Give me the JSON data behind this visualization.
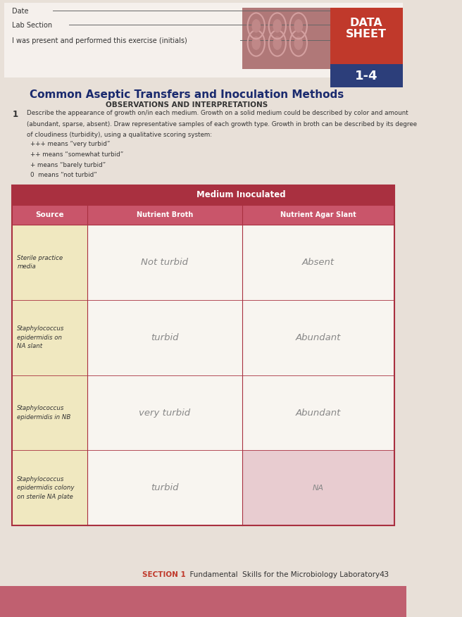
{
  "page_bg": "#e8e0d8",
  "header_bg": "#f5f0ec",
  "data_sheet_bg": "#c0392b",
  "data_sheet_num_bg": "#2c3e7a",
  "title": "Common Aseptic Transfers and Inoculation Methods",
  "subtitle": "OBSERVATIONS AND INTERPRETATIONS",
  "question_text_line1": "Describe the appearance of growth on/in each medium. Growth on a solid medium could be described by color and amount",
  "question_text_line2": "(abundant, sparse, absent). Draw representative samples of each growth type. Growth in broth can be described by its degree",
  "question_text_line3": "of cloudiness (turbidity), using a qualitative scoring system:",
  "scoring_lines": [
    "+++ means “very turbid”",
    "++ means “somewhat turbid”",
    "+ means “barely turbid”",
    "0  means “not turbid”"
  ],
  "table_header_top": "Medium Inoculated",
  "table_col_headers": [
    "Source",
    "Nutrient Broth",
    "Nutrient Agar Slant"
  ],
  "table_header_bg": "#a93040",
  "table_subheader_bg": "#c9556a",
  "source_col_bg": "#f0e8c0",
  "white_cell_bg": "#f8f5f0",
  "pink_cell_bg": "#e8ccd0",
  "rows": [
    {
      "source": "Sterile practice\nmedia",
      "broth": "Not turbid",
      "slant": "Absent",
      "slant_bg": "#f8f5f0"
    },
    {
      "source": "Staphylococcus\nepidermidis on\nNA slant",
      "broth": "turbid",
      "slant": "Abundant",
      "slant_bg": "#f8f5f0"
    },
    {
      "source": "Staphylococcus\nepidermidis in NB",
      "broth": "very turbid",
      "slant": "Abundant",
      "slant_bg": "#f8f5f0"
    },
    {
      "source": "Staphylococcus\nepidermidis colony\non sterile NA plate",
      "broth": "turbid",
      "slant": "NA",
      "slant_bg": "#e8ccd0"
    }
  ],
  "footer_section": "SECTION 1",
  "footer_rest": "  Fundamental  Skills for the Microbiology Laboratory",
  "footer_page": "43",
  "footer_section_color": "#c0392b",
  "handwriting_color": "#888888"
}
